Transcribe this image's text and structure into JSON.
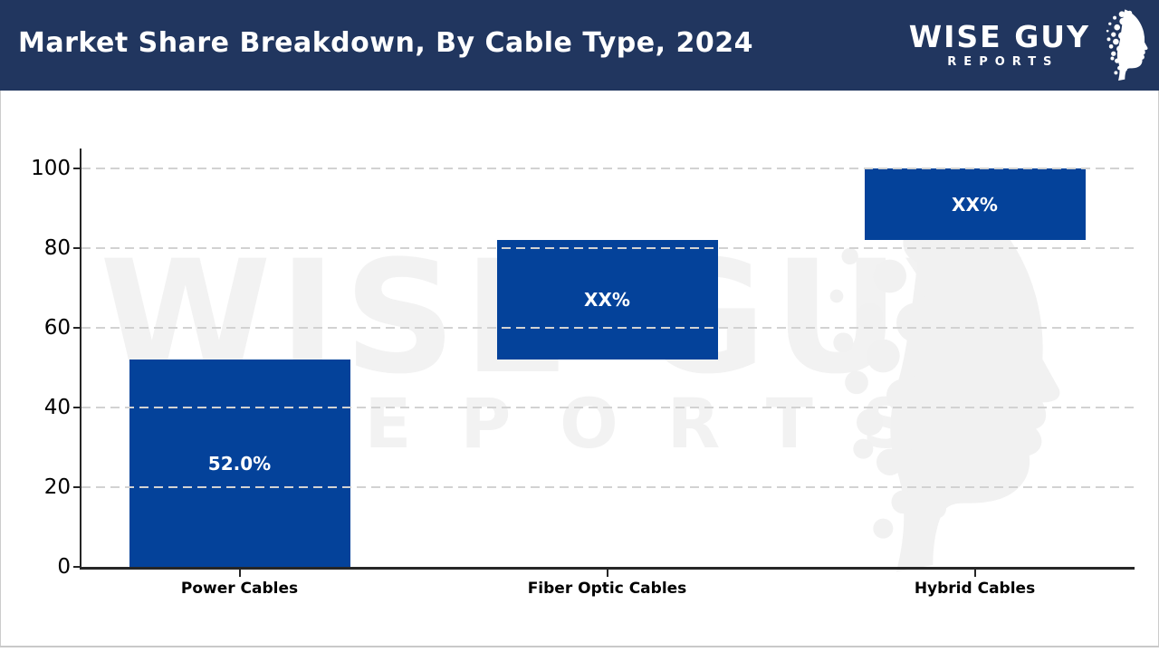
{
  "header": {
    "title": "Market Share Breakdown, By Cable Type, 2024",
    "bg_color": "#21365f"
  },
  "logo": {
    "wordmark": "WISE GUY",
    "subtitle": "REPORTS"
  },
  "watermark": {
    "line1": "WISE GUY",
    "line2": "REPORTS"
  },
  "chart_data": {
    "type": "bar",
    "subtype": "waterfall (floating segment bars)",
    "title": "Market Share Breakdown, By Cable Type, 2024",
    "categories": [
      "Power Cables",
      "Fiber Optic Cables",
      "Hybrid Cables"
    ],
    "series": [
      {
        "name": "Market share (%)",
        "segments": [
          {
            "base": 0,
            "top": 52,
            "label": "52.0%"
          },
          {
            "base": 52,
            "top": 82,
            "label": "XX%"
          },
          {
            "base": 82,
            "top": 100,
            "label": "XX%"
          }
        ]
      }
    ],
    "xlabel": "",
    "ylabel": "",
    "ylim": [
      0,
      105
    ],
    "yticks": [
      0,
      20,
      40,
      60,
      80,
      100
    ],
    "grid": "horizontal dashed",
    "legend": "none",
    "bar_color": "#04429a",
    "bar_label_color": "#ffffff",
    "axis_color": "#262626",
    "grid_color": "#d2d2d2",
    "watermark_color": "#f2f2f2"
  }
}
